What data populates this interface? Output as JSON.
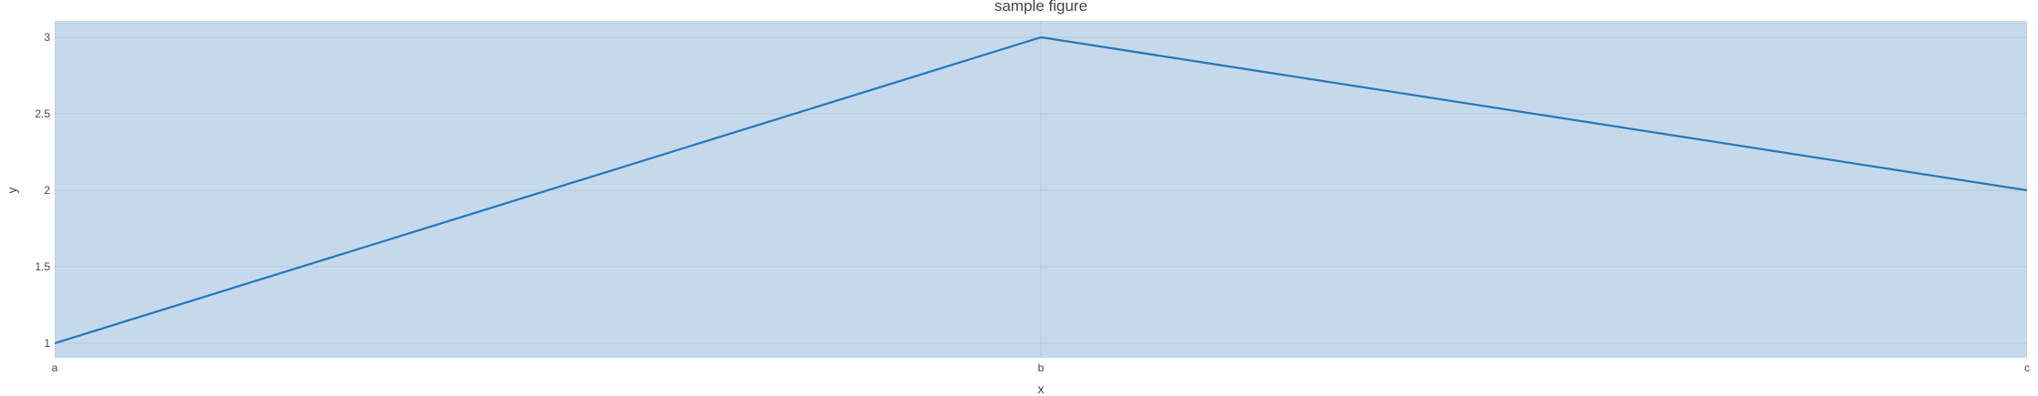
{
  "chart_data": {
    "type": "line",
    "title": "sample figure",
    "xlabel": "x",
    "ylabel": "y",
    "categories": [
      "a",
      "b",
      "c"
    ],
    "values": [
      1,
      3,
      2
    ],
    "yticks": [
      1,
      1.5,
      2,
      2.5,
      3
    ],
    "ytick_labels": [
      "1",
      "1.5",
      "2",
      "2.5",
      "3"
    ],
    "ylim": [
      0.905,
      3.107
    ],
    "grid": true,
    "legend_position": "none"
  },
  "colors": {
    "page_background": "#ffffff",
    "plot_background": "#c6d9ec",
    "gridline": "#b4c9dc",
    "line": "#2478b8",
    "text": "#454545"
  }
}
